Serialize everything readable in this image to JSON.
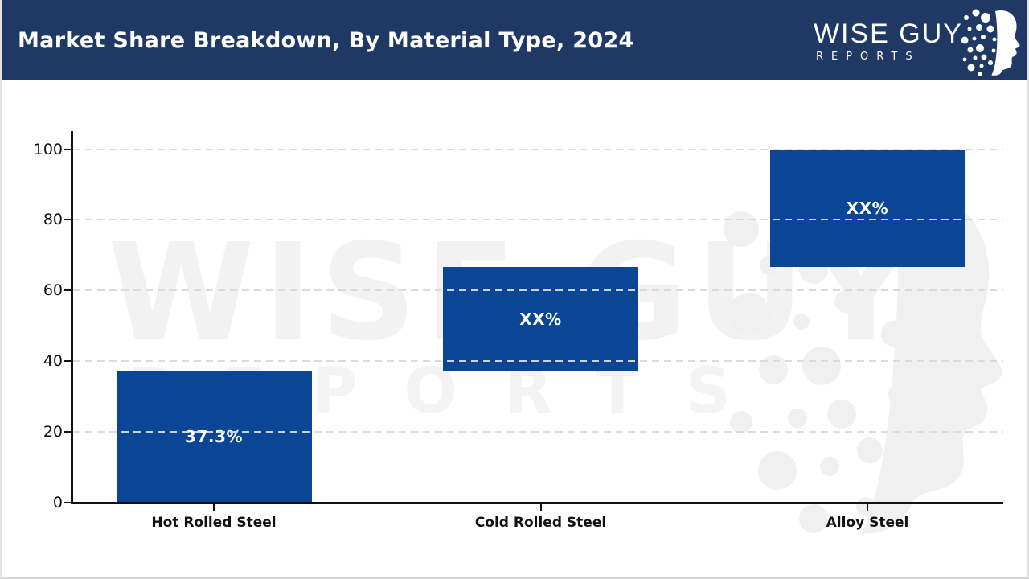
{
  "header": {
    "title": "Market Share Breakdown, By Material Type, 2024",
    "logo": {
      "line1": "WISE GUY",
      "line2": "REPORTS"
    }
  },
  "watermark": {
    "line1": "WISE GUY",
    "line2": "REPORTS"
  },
  "colors": {
    "header_bg": "#1f3864",
    "bar_blue": "#0a4596",
    "grid_gray": "#d9d9d9",
    "watermark_gray": "#f2f2f2",
    "bar_label_white": "#ffffff"
  },
  "chart_data": {
    "type": "bar",
    "subtype": "stacked-waterfall-percentage",
    "title": "Market Share Breakdown, By Material Type, 2024",
    "categories": [
      "Hot Rolled Steel",
      "Cold Rolled Steel",
      "Alloy Steel"
    ],
    "segments": [
      {
        "category": "Hot Rolled Steel",
        "start": 0,
        "end": 37.3,
        "label": "37.3%"
      },
      {
        "category": "Cold Rolled Steel",
        "start": 37.3,
        "end": 66.6,
        "label": "XX%"
      },
      {
        "category": "Alloy Steel",
        "start": 66.6,
        "end": 100,
        "label": "XX%"
      }
    ],
    "ylim": [
      0,
      100
    ],
    "yticks": [
      0,
      20,
      40,
      60,
      80,
      100
    ],
    "xlabel": "",
    "ylabel": "",
    "grid": "dashed-horizontal",
    "legend": "none"
  }
}
